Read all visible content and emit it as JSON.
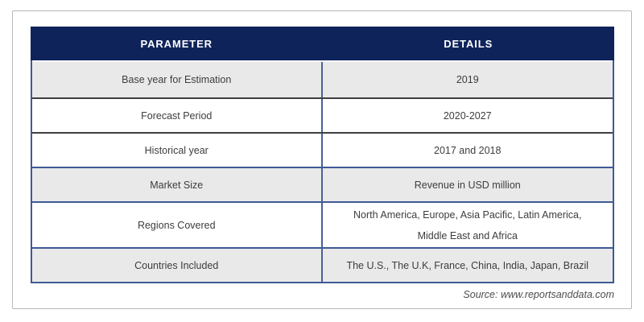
{
  "table": {
    "headers": [
      {
        "label": "PARAMETER"
      },
      {
        "label": "DETAILS"
      }
    ],
    "rows": [
      {
        "parameter": "Base year for Estimation",
        "details": "2019"
      },
      {
        "parameter": "Forecast Period",
        "details": "2020-2027"
      },
      {
        "parameter": "Historical year",
        "details": "2017 and 2018"
      },
      {
        "parameter": "Market Size",
        "details": "Revenue in USD million"
      },
      {
        "parameter": "Regions Covered",
        "details": "North America, Europe, Asia Pacific, Latin America,\nMiddle East and Africa"
      },
      {
        "parameter": "Countries Included",
        "details": "The U.S., The  U.K, France, China, India, Japan, Brazil"
      }
    ]
  },
  "footer": {
    "source": "Source: www.reportsanddata.com"
  },
  "colors": {
    "header_bg": "#0f235b",
    "header_text": "#ffffff",
    "row_alt_bg": "#e9e9e9",
    "border_blue": "#3e5a96",
    "border_dark": "#3f3f3f",
    "body_text": "#3d3d3d",
    "frame_border": "#b8b8b8",
    "source_text": "#4d4d4d"
  }
}
